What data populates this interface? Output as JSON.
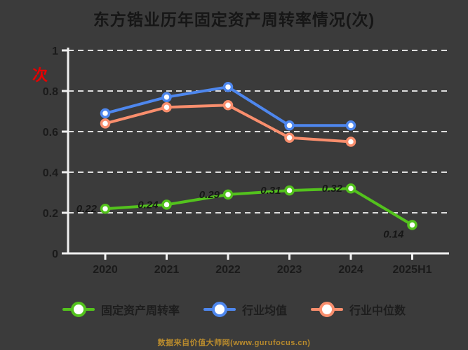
{
  "unit_label": "次",
  "footer": "数据来自价值大师网(www.gurufocus.cn)",
  "colors": {
    "background": "#3b3b3b",
    "grid": "#f0f0f0",
    "axis": "#f0f0f0",
    "dark_text": "#1a1a1a",
    "unit_red": "#e60000",
    "footer_gold": "#b98b2d",
    "marker_fill": "#ffffff"
  },
  "chart_data": {
    "type": "line",
    "title": "东方锆业历年固定资产周转率情况(次)",
    "categories": [
      "2020",
      "2021",
      "2022",
      "2023",
      "2024",
      "2025H1"
    ],
    "yticks": [
      0,
      0.2,
      0.4,
      0.6,
      0.8,
      1
    ],
    "ylim": [
      0,
      1
    ],
    "grid": "horizontal-dashed",
    "legend_position": "bottom",
    "series": [
      {
        "name": "固定资产周转率",
        "color": "#53c21d",
        "values": [
          0.22,
          0.24,
          0.29,
          0.31,
          0.32,
          0.14
        ],
        "labels": [
          "0.22",
          "0.24",
          "0.29",
          "0.31",
          "0.32",
          "0.14"
        ]
      },
      {
        "name": "行业均值",
        "color": "#4e87ee",
        "values": [
          0.69,
          0.77,
          0.82,
          0.63,
          0.63,
          null
        ],
        "labels": null
      },
      {
        "name": "行业中位数",
        "color": "#f98e6d",
        "values": [
          0.64,
          0.72,
          0.73,
          0.57,
          0.55,
          null
        ],
        "labels": null
      }
    ]
  }
}
